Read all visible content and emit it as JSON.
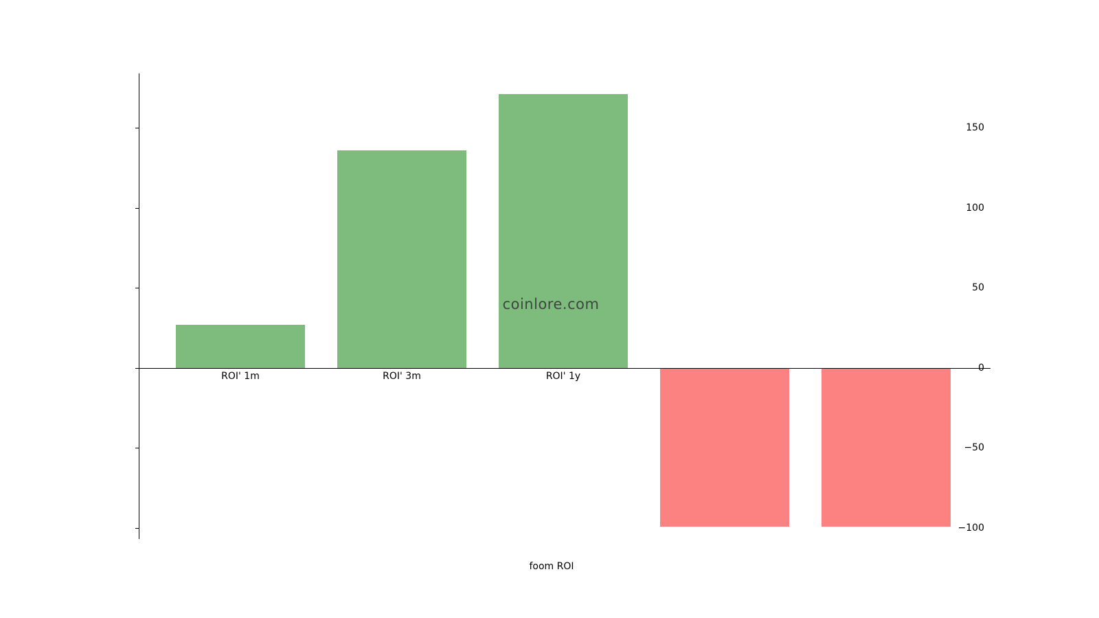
{
  "chart_data": {
    "type": "bar",
    "title": "",
    "xlabel": "foom ROI",
    "ylabel": "",
    "categories": [
      "ROI' 1m",
      "ROI' 3m",
      "ROI' 1y",
      "",
      ""
    ],
    "values": [
      27,
      136,
      171,
      -99,
      -99
    ],
    "bar_colors": [
      "#7dbc7d",
      "#7dbc7d",
      "#7dbc7d",
      "#fc8181",
      "#fc8181"
    ],
    "positive_color": "#7dbc7d",
    "negative_color": "#fc8181",
    "yticks": [
      150,
      100,
      50,
      0,
      -50,
      -100
    ],
    "ylim": [
      -107,
      184
    ],
    "grid": false,
    "legend_position": "none",
    "zero_line": true,
    "axis_color": "#000000"
  },
  "watermark": {
    "text": "coinlore.com",
    "color": "#3e463f"
  }
}
